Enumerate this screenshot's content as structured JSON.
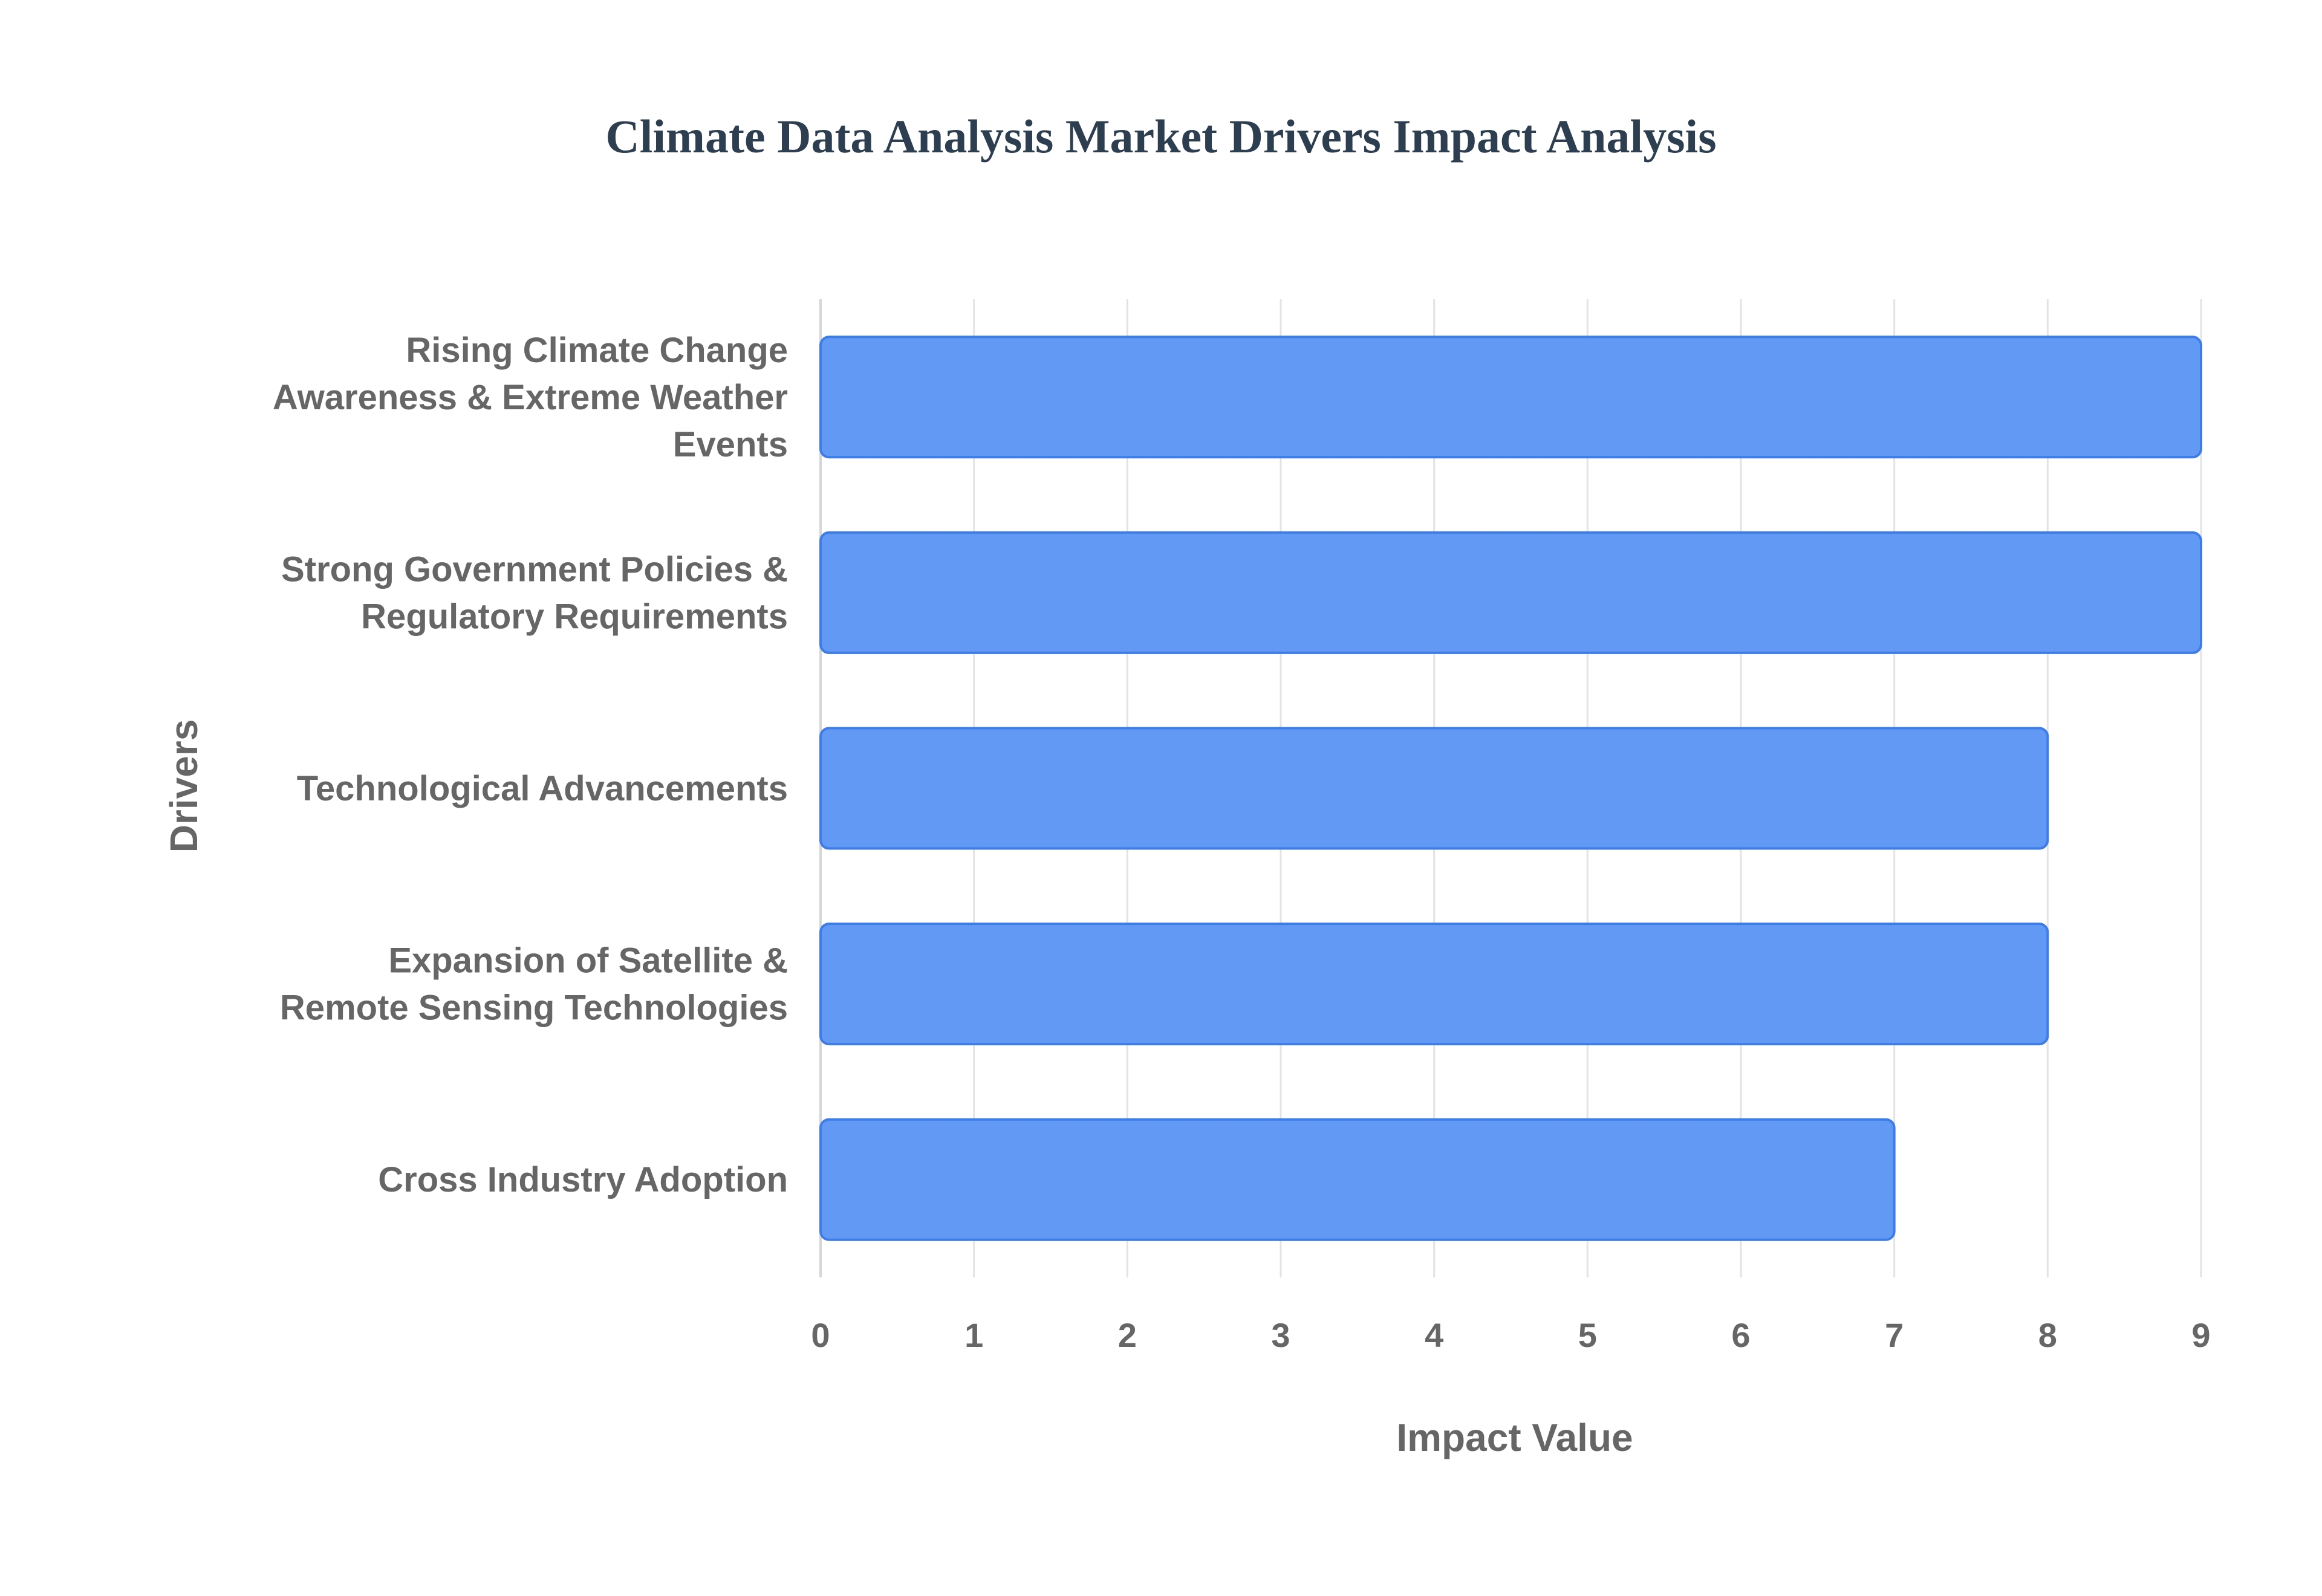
{
  "chart_data": {
    "type": "bar",
    "orientation": "horizontal",
    "title": "Climate Data Analysis Market Drivers Impact Analysis",
    "xlabel": "Impact Value",
    "ylabel": "Drivers",
    "xlim": [
      0,
      9
    ],
    "x_ticks": [
      "0",
      "1",
      "2",
      "3",
      "4",
      "5",
      "6",
      "7",
      "8",
      "9"
    ],
    "grid": true,
    "categories": [
      [
        "Rising Climate Change",
        "Awareness & Extreme Weather",
        "Events"
      ],
      [
        "Strong Government Policies &",
        "Regulatory Requirements"
      ],
      [
        "Technological Advancements"
      ],
      [
        "Expansion of Satellite &",
        "Remote Sensing Technologies"
      ],
      [
        "Cross Industry Adoption"
      ]
    ],
    "values": [
      9,
      9,
      8,
      8,
      7
    ],
    "colors": {
      "bar_fill": "#6199f5",
      "bar_stroke": "#3f7de6",
      "text": "#666666",
      "title": "#2c3e50",
      "grid": "#e3e3e3"
    }
  }
}
